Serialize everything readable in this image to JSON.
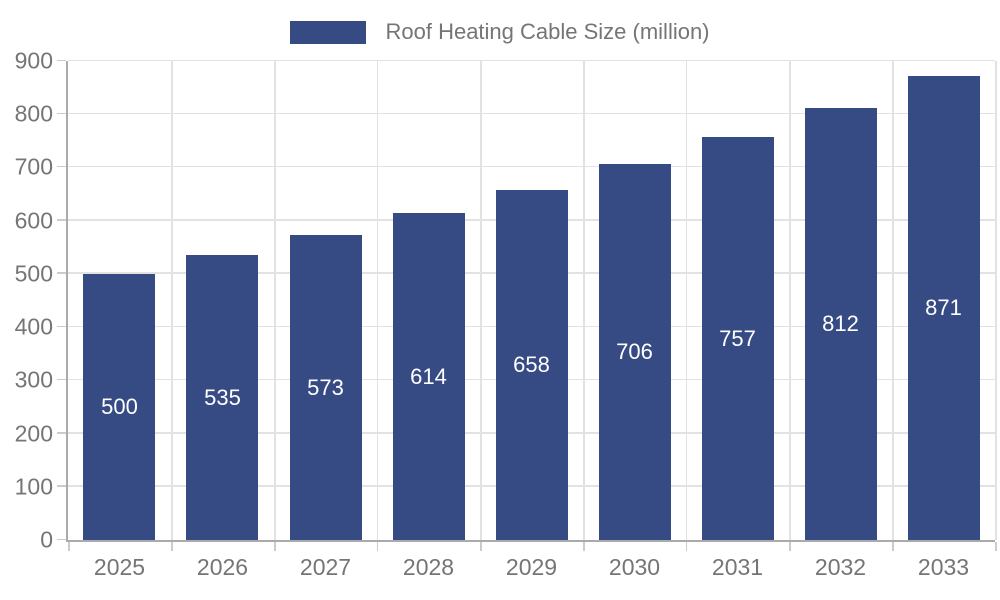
{
  "legend": {
    "label": "Roof Heating Cable Size (million)"
  },
  "chart_data": {
    "type": "bar",
    "title": "Roof Heating Cable Size (million)",
    "categories": [
      "2025",
      "2026",
      "2027",
      "2028",
      "2029",
      "2030",
      "2031",
      "2032",
      "2033"
    ],
    "series": [
      {
        "name": "Roof Heating Cable Size (million)",
        "values": [
          500,
          535,
          573,
          614,
          658,
          706,
          757,
          812,
          871
        ]
      }
    ],
    "xlabel": "",
    "ylabel": "",
    "ylim": [
      0,
      900
    ],
    "ytick_step": 100,
    "grid": "horizontal and vertical gridlines on",
    "legend_position": "top-center",
    "value_labels": "white, centered inside bars"
  },
  "colors": {
    "bar": "#364A84",
    "grid_line": "#E2E2E2",
    "axis_line": "#AAAAAA",
    "tick_mark": "#CCCCCC",
    "tick_label": "#757575",
    "legend_text": "#757575",
    "value_label": "#FFFFFF",
    "background": "#FFFFFF"
  }
}
